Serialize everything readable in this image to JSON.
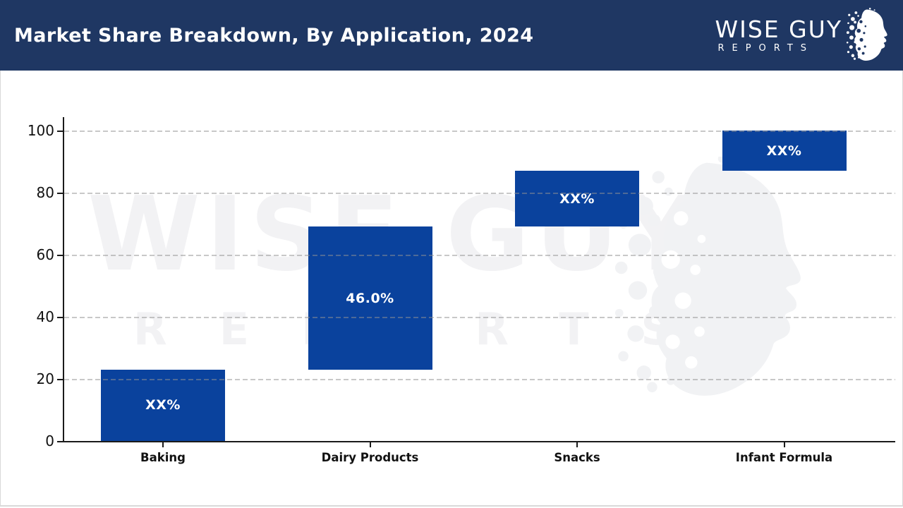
{
  "header": {
    "title": "Market Share Breakdown, By Application, 2024",
    "logo": {
      "line1": "WISE GUY",
      "line2": "REPORTS"
    }
  },
  "watermark": {
    "line1": "WISE GUY",
    "line2": "REPORTS"
  },
  "colors": {
    "header_bg": "#1f3763",
    "bar": "#0a429d",
    "bar_label": "#ffffff",
    "grid_dash": "#c9c9c9",
    "axis": "#1a1a1a",
    "tick_text": "#111111",
    "watermark": "#f2f2f4"
  },
  "chart_data": {
    "type": "bar",
    "subtype": "waterfall",
    "title": "Market Share Breakdown, By Application, 2024",
    "categories": [
      "Baking",
      "Dairy Products",
      "Snacks",
      "Infant Formula"
    ],
    "segments": [
      {
        "category": "Baking",
        "start": 0,
        "end": 23,
        "label": "XX%"
      },
      {
        "category": "Dairy Products",
        "start": 23,
        "end": 69,
        "label": "46.0%"
      },
      {
        "category": "Snacks",
        "start": 69,
        "end": 87,
        "label": "XX%"
      },
      {
        "category": "Infant Formula",
        "start": 87,
        "end": 100,
        "label": "XX%"
      }
    ],
    "yticks": [
      0,
      20,
      40,
      60,
      80,
      100
    ],
    "ylim": [
      0,
      105
    ],
    "xlabel": "",
    "ylabel": "",
    "grid": "horizontal-dashed",
    "legend": "none"
  }
}
